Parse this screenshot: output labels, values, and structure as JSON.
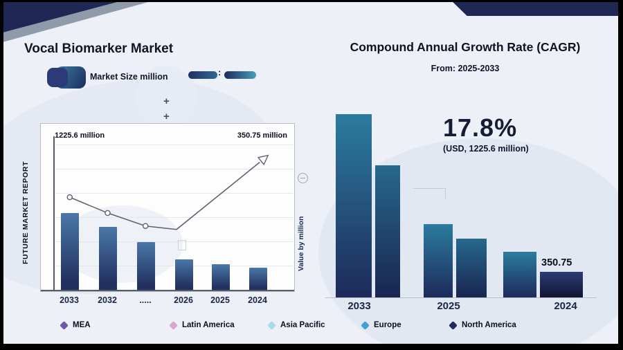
{
  "decor": {
    "plus": "+"
  },
  "left_chart": {
    "title": "Vocal Biomarker Market",
    "legend_label": "Market Size million",
    "ratio_separator": ":",
    "annotation_left": "1225.6 million",
    "annotation_right": "350.75 million",
    "side_label": "FUTURE MARKET REPORT"
  },
  "right_chart": {
    "title": "Compound Annual Growth Rate (CAGR)",
    "subtitle": "From: 2025-2033",
    "cagr_value": "17.8%",
    "cagr_note": "(USD, 1225.6 million)",
    "side_label": "Value by million",
    "data_label": "350.75"
  },
  "footer_legend": [
    {
      "label": "MEA",
      "color": "#6e57a5"
    },
    {
      "label": "Latin America",
      "color": "#d9a6d0"
    },
    {
      "label": "Asia Pacific",
      "color": "#a7dbe8"
    },
    {
      "label": "Europe",
      "color": "#3f9fd9"
    },
    {
      "label": "North America",
      "color": "#1c2a5c"
    }
  ],
  "colors": {
    "navy": "#1f2854",
    "teal": "#2e7ea1",
    "background": "#edf0f6"
  },
  "chart_data": [
    {
      "type": "bar",
      "title": "Vocal Biomarker Market",
      "series_label": "Market Size million",
      "categories": [
        "2033",
        "2032",
        ".....",
        "2026",
        "2025",
        "2024"
      ],
      "values": [
        1225.6,
        1000,
        765,
        490,
        405,
        350.75
      ],
      "unit": "million",
      "ylabel": "FUTURE MARKET REPORT",
      "ylim": [
        0,
        1300
      ],
      "grid": "horizontal",
      "annotations": [
        {
          "text": "1225.6 million",
          "position": "top-left"
        },
        {
          "text": "350.75 million",
          "position": "top-right"
        }
      ]
    },
    {
      "type": "bar",
      "title": "Compound Annual Growth Rate (CAGR)",
      "subtitle": "From: 2025-2033",
      "cagr": "17.8%",
      "cagr_note": "(USD, 1225.6 million)",
      "categories": [
        "2033",
        "2025",
        "2024"
      ],
      "series": [
        {
          "name": "series-1",
          "values": [
            100,
            40,
            25
          ]
        },
        {
          "name": "series-2",
          "values": [
            72,
            32,
            14
          ]
        }
      ],
      "ylabel": "Value by million",
      "annotations": [
        {
          "text": "350.75",
          "category": "2024"
        }
      ],
      "legend_position": "bottom",
      "legend": [
        "MEA",
        "Latin America",
        "Asia Pacific",
        "Europe",
        "North America"
      ]
    }
  ]
}
